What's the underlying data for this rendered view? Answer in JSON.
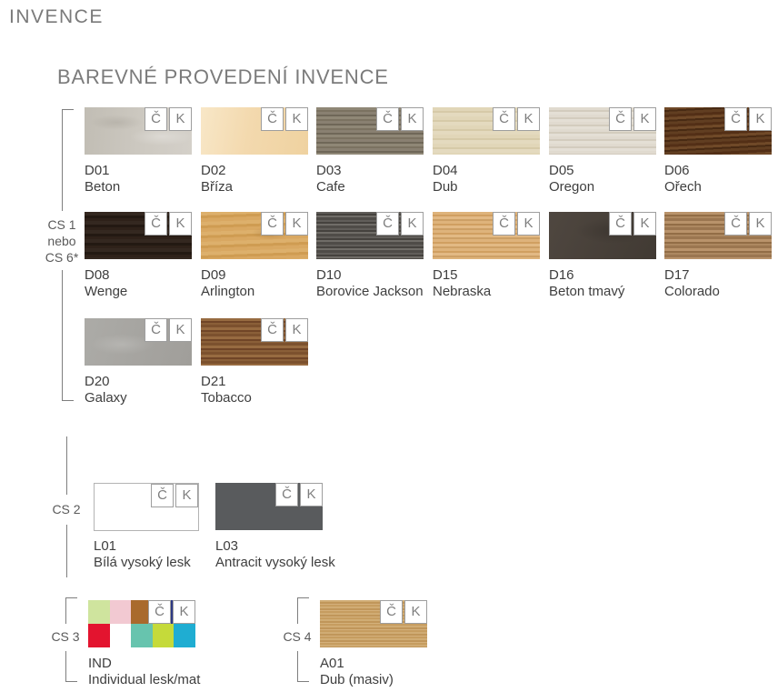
{
  "page": {
    "title": "INVENCE",
    "heading": "BAREVNÉ PROVEDENÍ INVENCE"
  },
  "badge": {
    "c": "Č",
    "k": "K"
  },
  "markers": {
    "cs1": {
      "line1": "CS 1",
      "line2": "nebo",
      "line3": "CS 6*"
    },
    "cs2": {
      "label": "CS 2"
    },
    "cs3": {
      "label": "CS 3"
    },
    "cs4": {
      "label": "CS 4"
    }
  },
  "swatches": {
    "d01": {
      "code": "D01",
      "name": "Beton",
      "base_color": "#c9c5bd"
    },
    "d02": {
      "code": "D02",
      "name": "Bříza",
      "base_color": "#f2d7ab"
    },
    "d03": {
      "code": "D03",
      "name": "Cafe",
      "base_color": "#877e6d"
    },
    "d04": {
      "code": "D04",
      "name": "Dub",
      "base_color": "#ddd2b3"
    },
    "d05": {
      "code": "D05",
      "name": "Oregon",
      "base_color": "#dcd5c9"
    },
    "d06": {
      "code": "D06",
      "name": "Ořech",
      "base_color": "#5e3c21"
    },
    "d08": {
      "code": "D08",
      "name": "Wenge",
      "base_color": "#2d221a"
    },
    "d09": {
      "code": "D09",
      "name": "Arlington",
      "base_color": "#d6a55f"
    },
    "d10": {
      "code": "D10",
      "name": "Borovice Jackson",
      "base_color": "#55524e"
    },
    "d15": {
      "code": "D15",
      "name": "Nebraska",
      "base_color": "#d7aa70"
    },
    "d16": {
      "code": "D16",
      "name": "Beton tmavý",
      "base_color": "#48413a"
    },
    "d17": {
      "code": "D17",
      "name": "Colorado",
      "base_color": "#aa855c"
    },
    "d20": {
      "code": "D20",
      "name": "Galaxy",
      "base_color": "#a7a6a2"
    },
    "d21": {
      "code": "D21",
      "name": "Tobacco",
      "base_color": "#8a5f38"
    },
    "l01": {
      "code": "L01",
      "name": "Bílá vysoký lesk",
      "base_color": "#ffffff"
    },
    "l03": {
      "code": "L03",
      "name": "Antracit vysoký lesk",
      "base_color": "#595b5d"
    },
    "ind": {
      "code": "IND",
      "name": "Individual lesk/mat",
      "palette": [
        "#cfe49e",
        "#f2c9d2",
        "#a96a2d",
        "#2e3a85",
        "#14a457",
        "#e3142f",
        "#ffffff",
        "#67c4ae",
        "#c5da3a",
        "#1fadd2"
      ]
    },
    "a01": {
      "code": "A01",
      "name": "Dub (masiv)",
      "base_color": "#c9a26a"
    }
  }
}
